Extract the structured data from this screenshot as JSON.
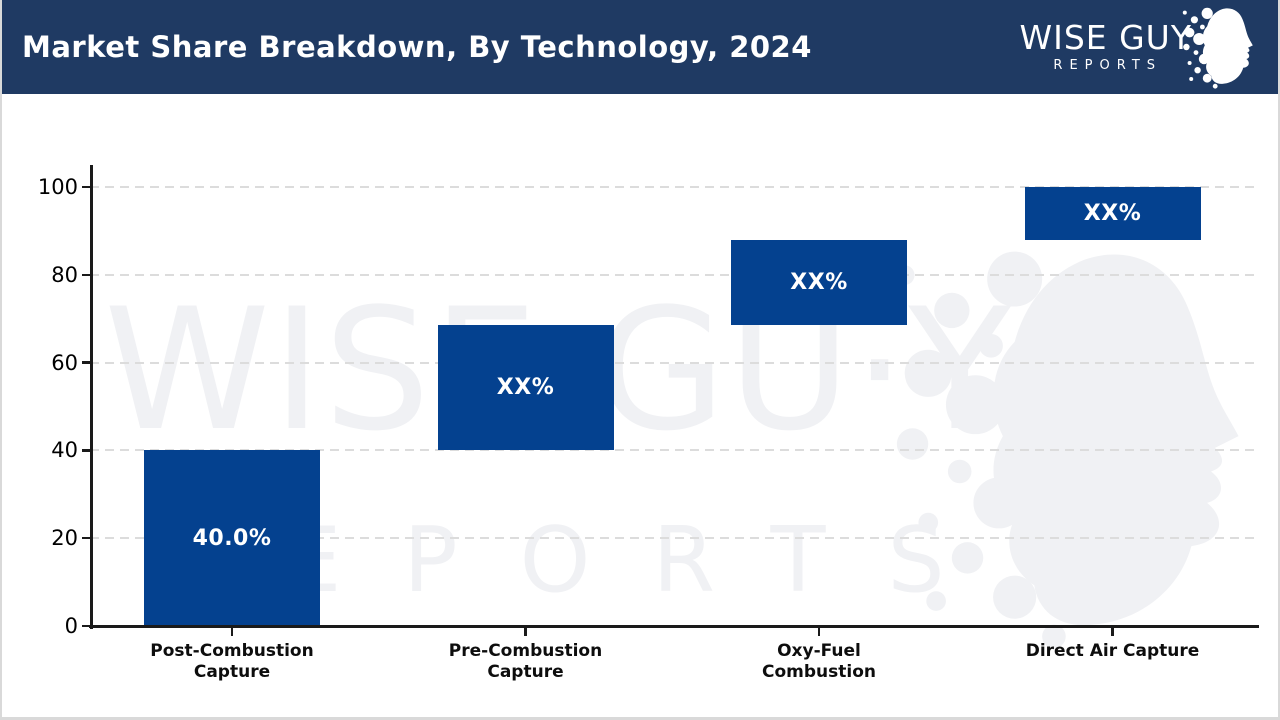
{
  "header": {
    "title": "Market Share Breakdown, By Technology, 2024",
    "logo": {
      "name_line": "WISE GUY",
      "reports_line": "REPORTS"
    }
  },
  "watermark": {
    "line1": "WISE GU·Y",
    "line2": "REPORTS"
  },
  "colors": {
    "header_bg": "#1f3a63",
    "bar": "#04418f",
    "bar_label": "#ffffff",
    "watermark": "#f0f1f4",
    "grid": "#dcdcdc",
    "axis": "#1a1a1a"
  },
  "chart_data": {
    "type": "bar",
    "subtype": "waterfall",
    "title": "Market Share Breakdown, By Technology, 2024",
    "categories": [
      "Post-Combustion Capture",
      "Pre-Combustion Capture",
      "Oxy-Fuel Combustion",
      "Direct Air Capture"
    ],
    "category_label_lines": [
      [
        "Post-Combustion",
        "Capture"
      ],
      [
        "Pre-Combustion",
        "Capture"
      ],
      [
        "Oxy-Fuel",
        "Combustion"
      ],
      [
        "Direct Air Capture"
      ]
    ],
    "segments": [
      {
        "category": "Post-Combustion Capture",
        "start": 0,
        "end": 40,
        "value": 40.0,
        "value_label": "40.0%"
      },
      {
        "category": "Pre-Combustion Capture",
        "start": 40,
        "end": 68.5,
        "value": 28.5,
        "value_label": "XX%"
      },
      {
        "category": "Oxy-Fuel Combustion",
        "start": 68.5,
        "end": 88,
        "value": 19.5,
        "value_label": "XX%"
      },
      {
        "category": "Direct Air Capture",
        "start": 88,
        "end": 100,
        "value": 12.0,
        "value_label": "XX%"
      }
    ],
    "yticks": [
      0,
      20,
      40,
      60,
      80,
      100
    ],
    "ylim": [
      0,
      100
    ],
    "xlabel": "",
    "ylabel": "",
    "grid": "horizontal dashed",
    "legend": "none"
  }
}
